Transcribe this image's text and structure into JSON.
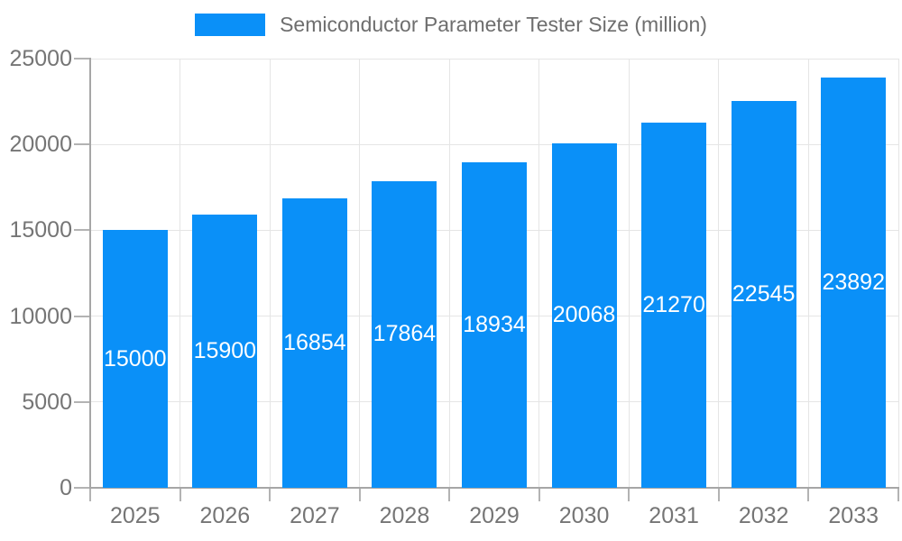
{
  "chart_data": {
    "type": "bar",
    "title": "Semiconductor Parameter Tester Size (million)",
    "legend_position": "top",
    "categories": [
      "2025",
      "2026",
      "2027",
      "2028",
      "2029",
      "2030",
      "2031",
      "2032",
      "2033"
    ],
    "series": [
      {
        "name": "Semiconductor Parameter Tester Size (million)",
        "values": [
          15000,
          15900,
          16854,
          17864,
          18934,
          20068,
          21270,
          22545,
          23892
        ]
      }
    ],
    "data_labels_shown": true,
    "xlabel": "",
    "ylabel": "",
    "ylim": [
      0,
      25000
    ],
    "ytick_step": 5000,
    "yticks": [
      "0",
      "5000",
      "10000",
      "15000",
      "20000",
      "25000"
    ],
    "grid": true
  },
  "colors": {
    "bar": "#0a90f8",
    "bar_label": "#ffffff",
    "grid": "#e5e5e5",
    "axis": "#a6a6a6",
    "tick": "#b3b3b3",
    "tick_label": "#757575",
    "legend_text": "#6e6e6e",
    "background": "#ffffff"
  }
}
